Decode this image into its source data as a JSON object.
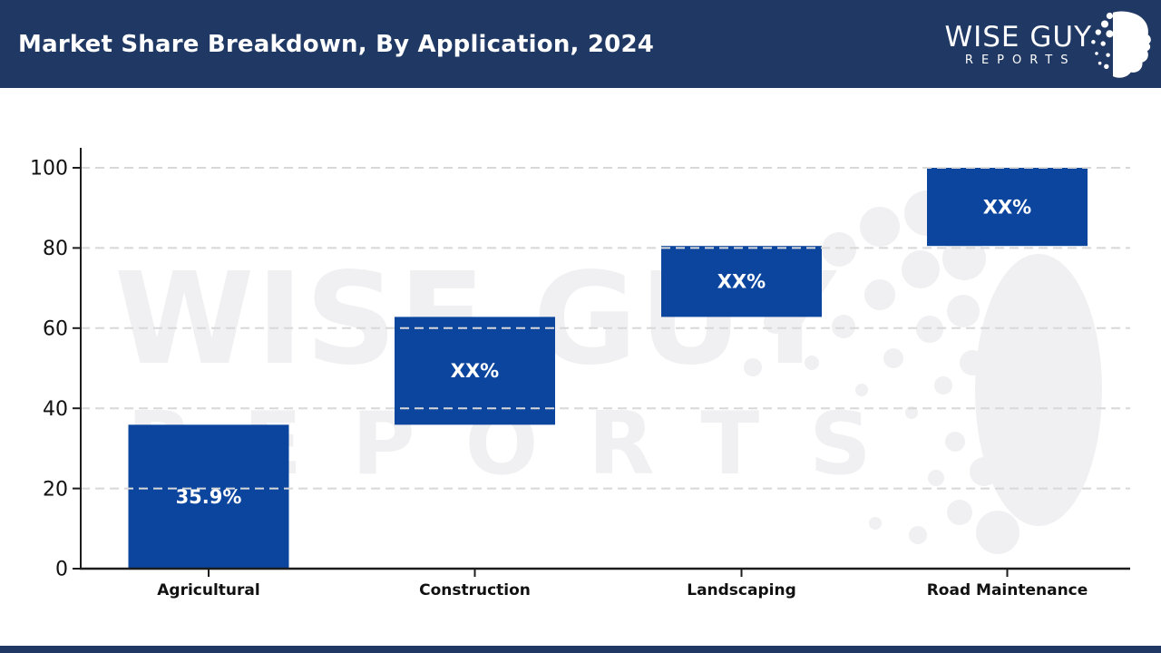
{
  "header": {
    "title": "Market Share Breakdown, By Application, 2024",
    "brand": {
      "line1": "WISE GUY",
      "line2": "REPORTS"
    }
  },
  "watermark": {
    "line1": "WISE GUY",
    "line2": "REPORTS"
  },
  "chart_data": {
    "type": "bar",
    "subtype": "waterfall",
    "title": "Market Share Breakdown, By Application, 2024",
    "categories": [
      "Agricultural",
      "Construction",
      "Landscaping",
      "Road Maintenance"
    ],
    "segments": [
      {
        "category": "Agricultural",
        "start": 0,
        "end": 35.9,
        "label": "35.9%"
      },
      {
        "category": "Construction",
        "start": 35.9,
        "end": 62.8,
        "label": "XX%"
      },
      {
        "category": "Landscaping",
        "start": 62.8,
        "end": 80.5,
        "label": "XX%"
      },
      {
        "category": "Road Maintenance",
        "start": 80.5,
        "end": 100.0,
        "label": "XX%"
      }
    ],
    "yticks": [
      0,
      20,
      40,
      60,
      80,
      100
    ],
    "ylim": [
      0,
      105
    ],
    "xlabel": "",
    "ylabel": "",
    "legend": "none",
    "grid": "horizontal-dashed",
    "colors": {
      "header_bg": "#203864",
      "bar": "#0c459e",
      "bar_label": "#ffffff",
      "grid": "#d8d8d8",
      "axis": "#1c1c1c",
      "tick_label": "#111111",
      "watermark": "#f0f0f2"
    }
  }
}
